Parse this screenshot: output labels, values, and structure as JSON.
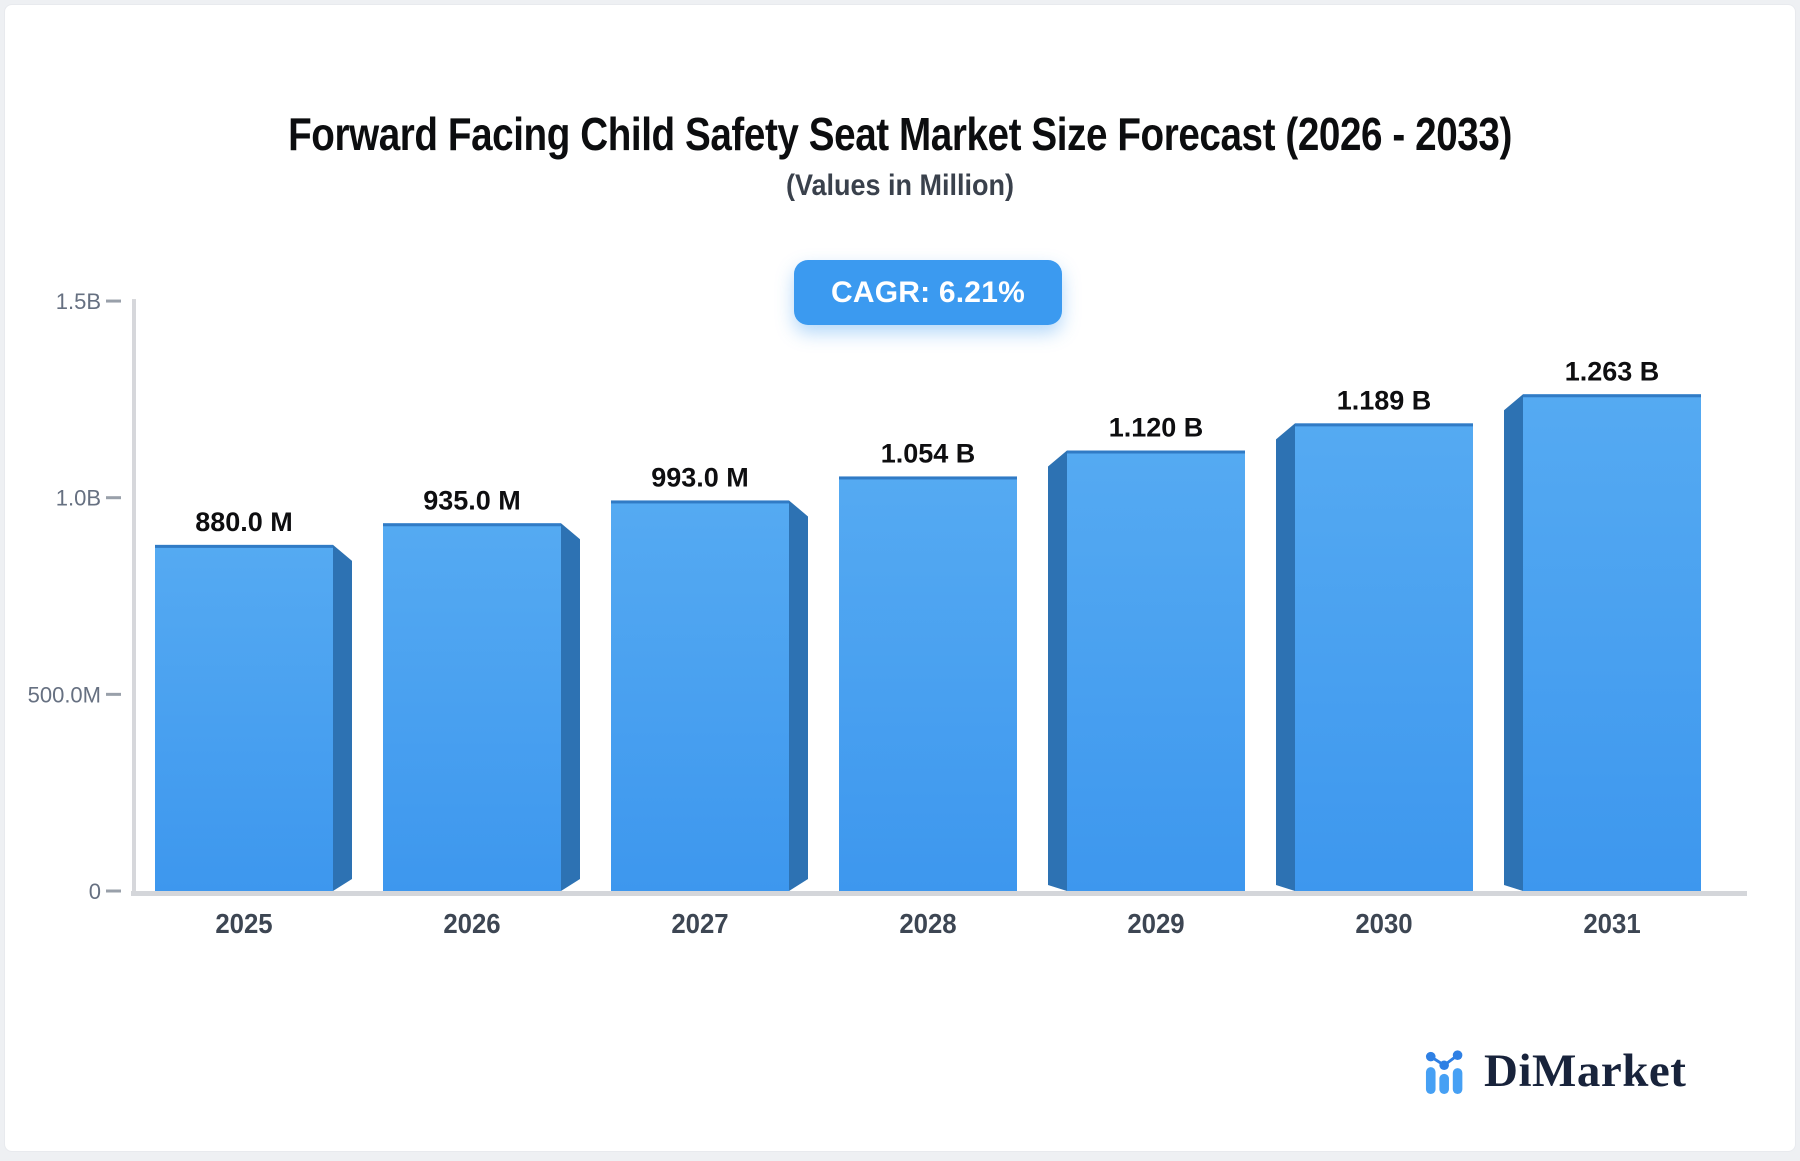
{
  "page": {
    "background": "#eef0f3",
    "card_background": "#ffffff"
  },
  "header": {
    "title": "Forward Facing Child Safety Seat Market Size Forecast (2026 - 2033)",
    "subtitle": "(Values in Million)"
  },
  "badge": {
    "label": "CAGR: 6.21%",
    "background": "#3b9af0",
    "text_color": "#ffffff"
  },
  "chart_data": {
    "type": "bar",
    "title": "Forward Facing Child Safety Seat Market Size Forecast (2026 - 2033)",
    "subtitle": "(Values in Million)",
    "categories": [
      "2025",
      "2026",
      "2027",
      "2028",
      "2029",
      "2030",
      "2031"
    ],
    "values_millions": [
      880,
      935,
      993,
      1054,
      1120,
      1189,
      1263
    ],
    "value_labels": [
      "880.0 M",
      "935.0 M",
      "993.0 M",
      "1.054 B",
      "1.120 B",
      "1.189 B",
      "1.263 B"
    ],
    "xlabel": "",
    "ylabel": "",
    "ylim_millions": [
      0,
      1500
    ],
    "y_ticks": [
      {
        "label": "1.5B",
        "value_millions": 1500
      },
      {
        "label": "1.0B",
        "value_millions": 1000
      },
      {
        "label": "500.0M",
        "value_millions": 500
      },
      {
        "label": "0",
        "value_millions": 0
      }
    ],
    "grid": false,
    "legend": false,
    "colors": {
      "bar_face_top": "#55aaf2",
      "bar_face_bottom": "#3d97ee",
      "bar_top_edge": "#2b73bd",
      "bar_side": "#2d72b3",
      "axis_line": "#d6d7db",
      "baseline": "#d4d6da",
      "tick_dash": "#99a0aa",
      "y_tick_text": "#667081",
      "x_tick_text": "#3d4653",
      "value_label_text": "#0e0e10"
    }
  },
  "logo": {
    "text": "DiMarket",
    "text_color": "#18233b",
    "icon_bar_color": "#46a0f4",
    "icon_dot_color": "#2f80e4"
  }
}
